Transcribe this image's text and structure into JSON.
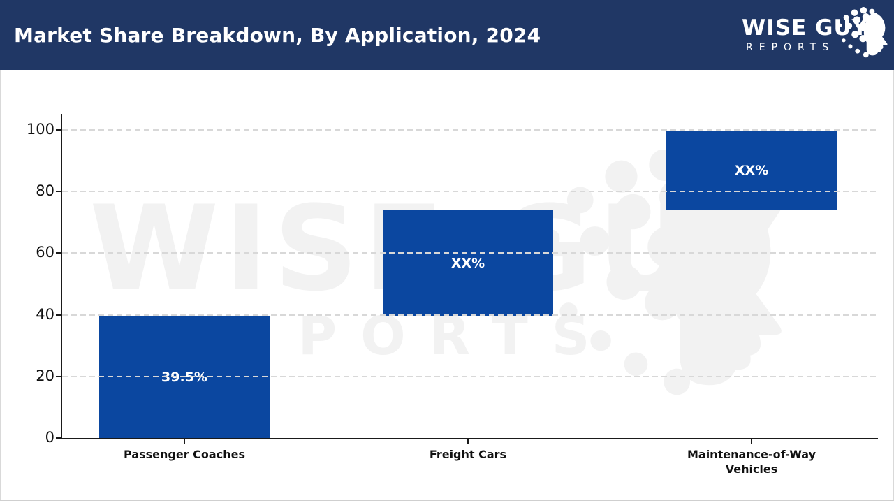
{
  "header": {
    "title": "Market Share Breakdown, By Application, 2024",
    "logo": {
      "brand": "WISE GUY",
      "sub": "REPORTS"
    }
  },
  "watermark": {
    "brand": "WISE GUY",
    "sub": "REPORTS"
  },
  "colors": {
    "header_bg": "#203765",
    "bar": "#0b47a0",
    "bar_label": "#ffffff",
    "gridline": "#d8d8d8",
    "axis": "#1a1a1a",
    "watermark": "#f2f2f2"
  },
  "chart_data": {
    "type": "bar",
    "variant": "floating-segment (waterfall style market share)",
    "title": "Market Share Breakdown, By Application, 2024",
    "categories": [
      "Passenger Coaches",
      "Freight Cars",
      "Maintenance-of-Way Vehicles"
    ],
    "segments": [
      {
        "category": "Passenger Coaches",
        "start": 0,
        "end": 39.5,
        "label": "39.5%"
      },
      {
        "category": "Freight Cars",
        "start": 39.5,
        "end": 74,
        "label": "XX%"
      },
      {
        "category": "Maintenance-of-Way Vehicles",
        "start": 74,
        "end": 99.5,
        "label": "XX%"
      }
    ],
    "ylim": [
      0,
      105
    ],
    "yticks": [
      0,
      20,
      40,
      60,
      80,
      100
    ],
    "xlabel": "",
    "ylabel": "",
    "grid": {
      "horizontal": true,
      "style": "dashed",
      "color": "#d8d8d8",
      "drawn_over_bars": true
    },
    "legend": null,
    "bar_color": "#0b47a0",
    "bar_label_color": "#ffffff"
  }
}
